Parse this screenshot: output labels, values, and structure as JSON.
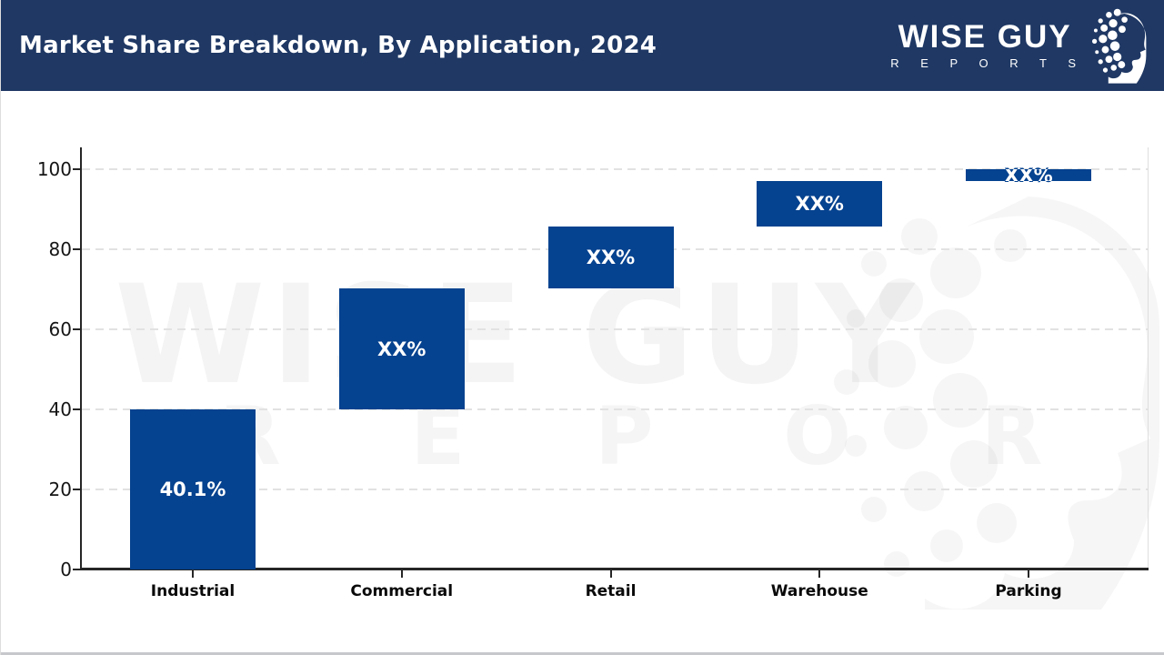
{
  "header": {
    "title": "Market Share Breakdown, By Application, 2024",
    "logo": {
      "line1": "WISE GUY",
      "line2": "R E P O R T S"
    }
  },
  "watermark": {
    "line1": "WISE GUY",
    "line2": "R E P O R T S"
  },
  "colors": {
    "header_bg": "#1f3864",
    "bar": "#05428f",
    "grid": "#e2e2e2",
    "axis": "#262626",
    "bar_label_on_bar": "#ffffff",
    "bar_label_outside": "#05428f"
  },
  "chart_data": {
    "type": "bar",
    "subtype": "waterfall",
    "title": "Market Share Breakdown, By Application, 2024",
    "xlabel": "",
    "ylabel": "",
    "categories": [
      "Industrial",
      "Commercial",
      "Retail",
      "Warehouse",
      "Parking"
    ],
    "segments": [
      {
        "category": "Industrial",
        "start": 0,
        "end": 40,
        "value": 40.1,
        "label": "40.1%"
      },
      {
        "category": "Commercial",
        "start": 40,
        "end": 70.2,
        "value": null,
        "label": "XX%"
      },
      {
        "category": "Retail",
        "start": 70.2,
        "end": 85.7,
        "value": null,
        "label": "XX%"
      },
      {
        "category": "Warehouse",
        "start": 85.7,
        "end": 97,
        "value": null,
        "label": "XX%"
      },
      {
        "category": "Parking",
        "start": 97,
        "end": 100,
        "value": null,
        "label": "XX%"
      }
    ],
    "yticks": [
      0,
      20,
      40,
      60,
      80,
      100
    ],
    "ylim": [
      0,
      105
    ],
    "grid": true,
    "grid_style": "dashed-horizontal",
    "legend": null
  }
}
